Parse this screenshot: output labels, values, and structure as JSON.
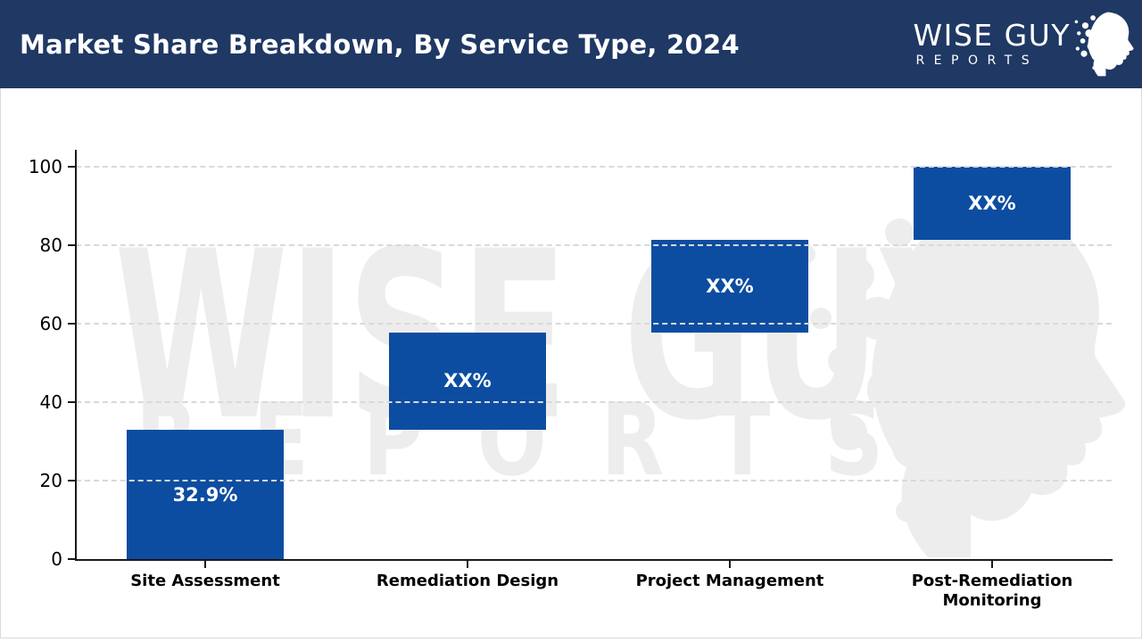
{
  "header": {
    "title": "Market Share Breakdown, By Service Type, 2024",
    "background": "#1f3864",
    "logo": {
      "line1": "WISE GUY",
      "line2": "REPORTS"
    }
  },
  "watermark": {
    "line1": "WISE GUY",
    "line2": "REPORTS",
    "color": "#ededed"
  },
  "chart_data": {
    "type": "bar",
    "subtype": "floating_waterfall",
    "title": "Market Share Breakdown, By Service Type, 2024",
    "categories": [
      "Site Assessment",
      "Remediation Design",
      "Project Management",
      "Post-Remediation Monitoring"
    ],
    "bars": [
      {
        "category": "Site Assessment",
        "start": 0,
        "end": 32.9,
        "label": "32.9%"
      },
      {
        "category": "Remediation Design",
        "start": 32.9,
        "end": 57.8,
        "label": "XX%"
      },
      {
        "category": "Project Management",
        "start": 57.8,
        "end": 81.4,
        "label": "XX%"
      },
      {
        "category": "Post-Remediation Monitoring",
        "start": 81.4,
        "end": 100,
        "label": "XX%"
      }
    ],
    "yticks": [
      0,
      20,
      40,
      60,
      80,
      100
    ],
    "ylim": [
      0,
      104
    ],
    "xlabel": "",
    "ylabel": "",
    "grid": "horizontal-dashed",
    "legend": "none",
    "bar_color": "#0d4da1",
    "bar_label_color": "#ffffff",
    "grid_color": "#d9d9d9",
    "axis_color": "#1a1a1a",
    "tick_label_color": "#000000"
  }
}
